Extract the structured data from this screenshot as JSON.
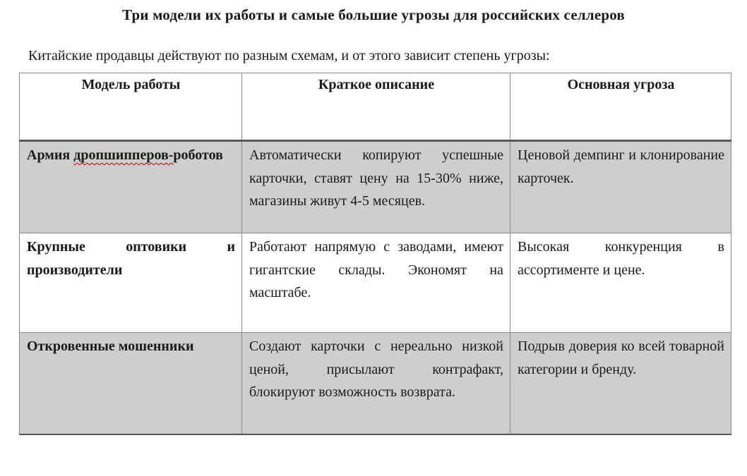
{
  "page": {
    "title": "Три модели их работы и самые большие угрозы для российских селлеров",
    "intro": "Китайские продавцы действуют по разным схемам, и от этого зависит степень угрозы:"
  },
  "table": {
    "columns": [
      "Модель работы",
      "Краткое описание",
      "Основная угроза"
    ],
    "rows": [
      {
        "model_pre": "Армия",
        "model_misspelled": "дропшипперов-",
        "model_post": "роботов",
        "description": "Автоматически копируют успешные карточки, ставят цену на 15-30% ниже, магазины живут 4-5 месяцев.",
        "threat": "Ценовой демпинг и клонирование карточек."
      },
      {
        "model": "Крупные оптовики и производители",
        "description": "Работают напрямую с заводами, имеют гигантские склады. Экономят на масштабе.",
        "threat": "Высокая конкуренция в ассортименте и цене."
      },
      {
        "model": "Откровенные мошенники",
        "description": "Создают карточки с нереально низкой ценой, присылают контрафакт, блокируют возможность возврата.",
        "threat": "Подрыв доверия ко всей товарной категории и бренду."
      }
    ],
    "colors": {
      "row_shade": "#cecece",
      "border": "#8a8a8a",
      "header_rule": "#565656",
      "misspell_underline": "#c00000",
      "text": "#1a1a1a"
    }
  }
}
